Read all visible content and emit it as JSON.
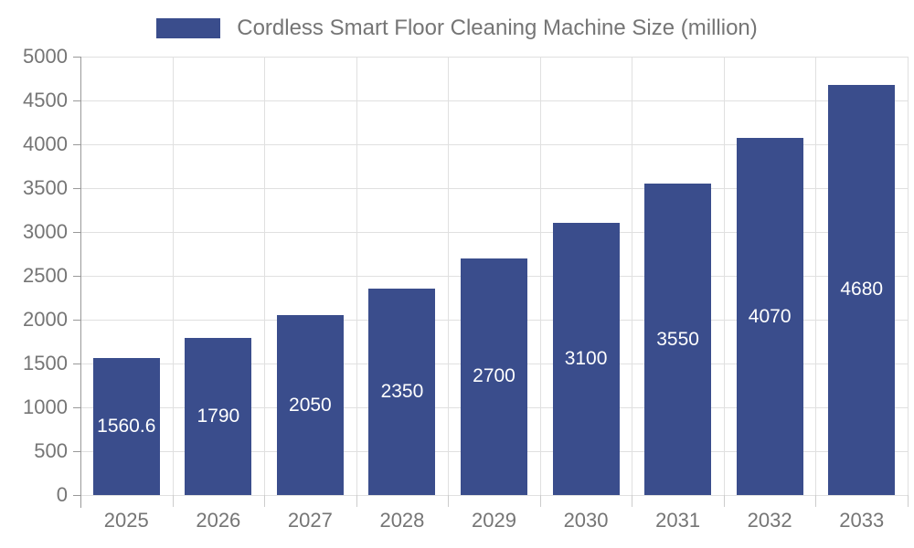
{
  "legend": {
    "label": "Cordless Smart Floor Cleaning Machine Size (million)"
  },
  "chart_data": {
    "type": "bar",
    "title": "Cordless Smart Floor Cleaning Machine Size (million)",
    "categories": [
      "2025",
      "2026",
      "2027",
      "2028",
      "2029",
      "2030",
      "2031",
      "2032",
      "2033"
    ],
    "values": [
      1560.6,
      1790,
      2050,
      2350,
      2700,
      3100,
      3550,
      4070,
      4680
    ],
    "value_labels": [
      "1560.6",
      "1790",
      "2050",
      "2350",
      "2700",
      "3100",
      "3550",
      "4070",
      "4680"
    ],
    "xlabel": "",
    "ylabel": "",
    "ylim": [
      0,
      5000
    ],
    "ytick_step": 500,
    "yticks": [
      0,
      500,
      1000,
      1500,
      2000,
      2500,
      3000,
      3500,
      4000,
      4500,
      5000
    ],
    "grid": true,
    "legend_position": "top",
    "bar_color": "#3A4D8C",
    "value_label_color": "#ffffff",
    "axis_text_color": "#757575",
    "axis_line_color": "#999999",
    "grid_color": "#e0e0e0",
    "tick_color": "#cccccc",
    "background_color": "#ffffff"
  }
}
